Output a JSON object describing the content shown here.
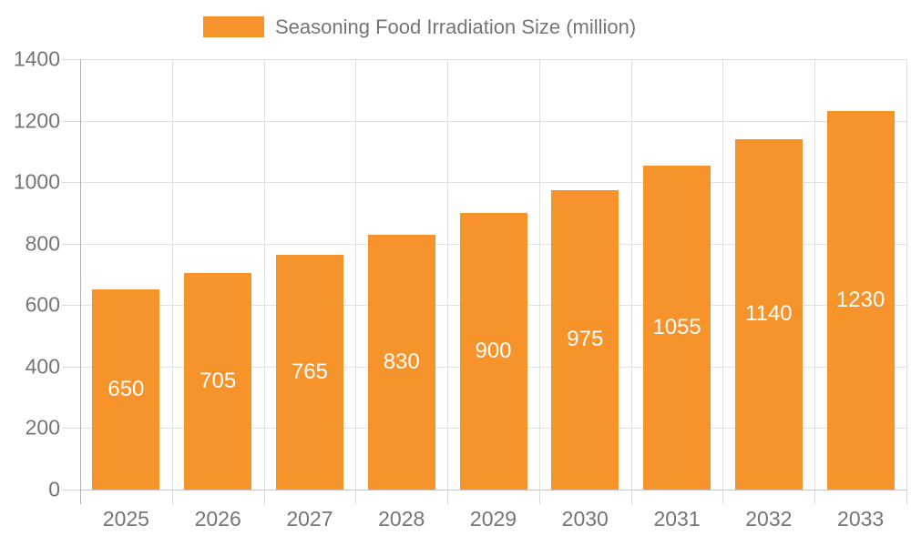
{
  "legend": {
    "label": "Seasoning Food Irradiation Size (million)"
  },
  "chart_data": {
    "type": "bar",
    "title": "Seasoning Food Irradiation Size (million)",
    "series_name": "Seasoning Food Irradiation Size (million)",
    "categories": [
      "2025",
      "2026",
      "2027",
      "2028",
      "2029",
      "2030",
      "2031",
      "2032",
      "2033"
    ],
    "values": [
      650,
      705,
      765,
      830,
      900,
      975,
      1055,
      1140,
      1230
    ],
    "value_labels": [
      "650",
      "705",
      "765",
      "830",
      "900",
      "975",
      "1055",
      "1140",
      "1230"
    ],
    "xlabel": "",
    "ylabel": "",
    "ylim": [
      0,
      1400
    ],
    "yticks": [
      0,
      200,
      400,
      600,
      800,
      1000,
      1200,
      1400
    ],
    "grid": true,
    "legend_position": "top-center",
    "bar_color": "#F6932A",
    "value_label_color": "#FFFFFF",
    "axis_text_color": "#757575",
    "grid_color": "#E0E0E0",
    "zero_line_color": "#C4C4C4",
    "axis_line_color": "#B0B0B0"
  }
}
